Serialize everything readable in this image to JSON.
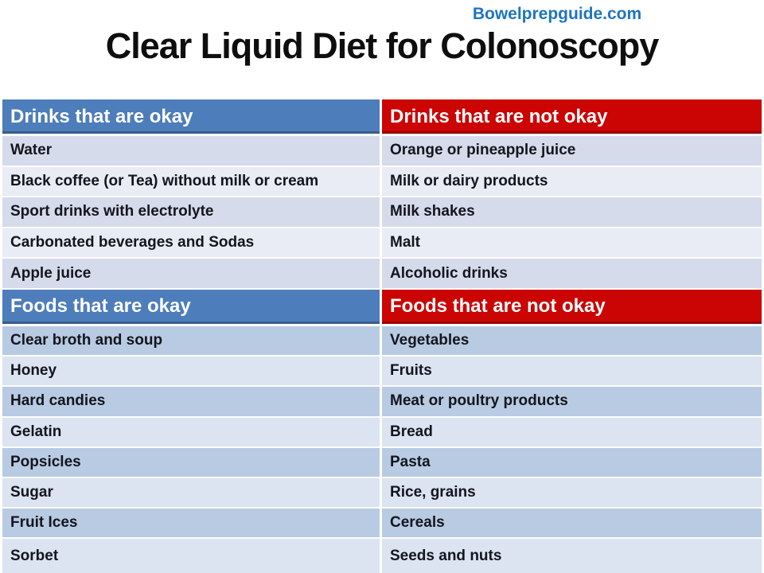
{
  "page": {
    "website": "Bowelprepguide.com",
    "title": "Clear Liquid Diet for Colonoscopy"
  },
  "colors": {
    "site_blue": "#1e75bd",
    "okay_header_bg": "#4d7dba",
    "not_okay_header_bg": "#cb0404",
    "drinks_row_dark": "#d5dbea",
    "drinks_row_light": "#e9ecf4",
    "foods_row_dark": "#b8cbe2",
    "foods_row_light": "#dbe4f0"
  },
  "table": {
    "sections": [
      {
        "name": "drinks",
        "left_header": "Drinks that are okay",
        "right_header": "Drinks that are not okay",
        "rows": [
          {
            "left": "Water",
            "right": "Orange or pineapple juice"
          },
          {
            "left": "Black coffee (or Tea) without milk or cream",
            "right": "Milk or dairy products"
          },
          {
            "left": "Sport drinks with electrolyte",
            "right": "Milk shakes"
          },
          {
            "left": "Carbonated beverages and Sodas",
            "right": "Malt"
          },
          {
            "left": "Apple juice",
            "right": "Alcoholic drinks"
          }
        ]
      },
      {
        "name": "foods",
        "left_header": "Foods that are okay",
        "right_header": "Foods that are not okay",
        "rows": [
          {
            "left": "Clear broth and soup",
            "right": "Vegetables"
          },
          {
            "left": "Honey",
            "right": "Fruits"
          },
          {
            "left": "Hard candies",
            "right": "Meat or poultry products"
          },
          {
            "left": "Gelatin",
            "right": "Bread"
          },
          {
            "left": "Popsicles",
            "right": "Pasta"
          },
          {
            "left": "Sugar",
            "right": "Rice, grains"
          },
          {
            "left": "Fruit Ices",
            "right": "Cereals"
          },
          {
            "left": "Sorbet",
            "right": "Seeds and nuts"
          }
        ]
      }
    ]
  }
}
